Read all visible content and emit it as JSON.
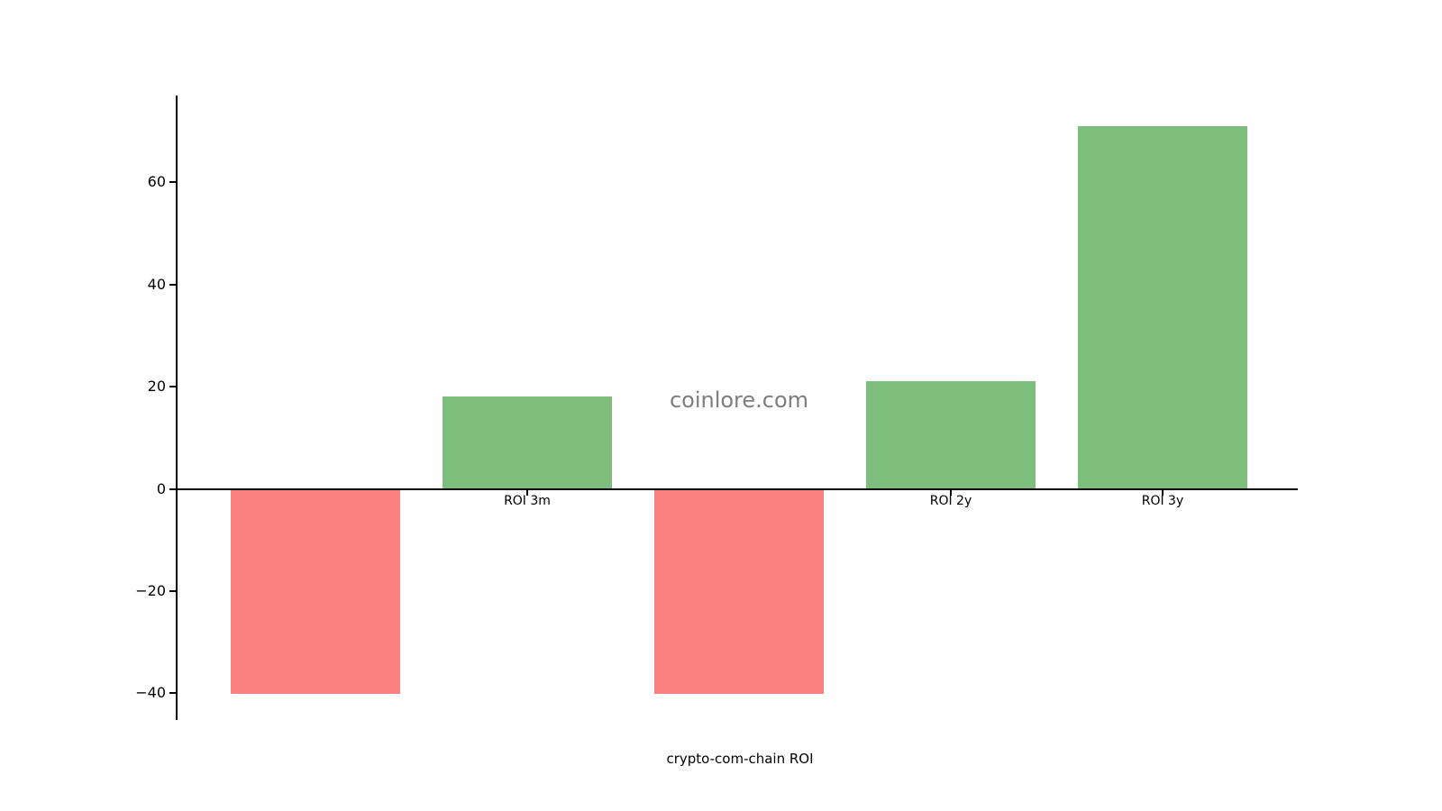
{
  "chart_data": {
    "type": "bar",
    "categories": [
      "",
      "ROI 3m",
      "",
      "ROI 2y",
      "ROI 3y"
    ],
    "values": [
      -40,
      18,
      -40,
      21,
      71
    ],
    "title": "",
    "xlabel": "crypto-com-chain ROI",
    "ylabel": "",
    "ylim": [
      -45.5,
      76.5
    ],
    "y_ticks": [
      60,
      40,
      20,
      0,
      -20,
      -40
    ],
    "y_tick_labels": [
      "60",
      "40",
      "20",
      "0",
      "−20",
      "−40"
    ],
    "grid": false,
    "legend": false,
    "positive_color": "#7dbe7d",
    "negative_color": "#fc8181",
    "axis_color": "#000000",
    "bar_width_fraction": 0.8
  },
  "watermark": {
    "text": "coinlore.com",
    "color": "#7e7e7e"
  }
}
